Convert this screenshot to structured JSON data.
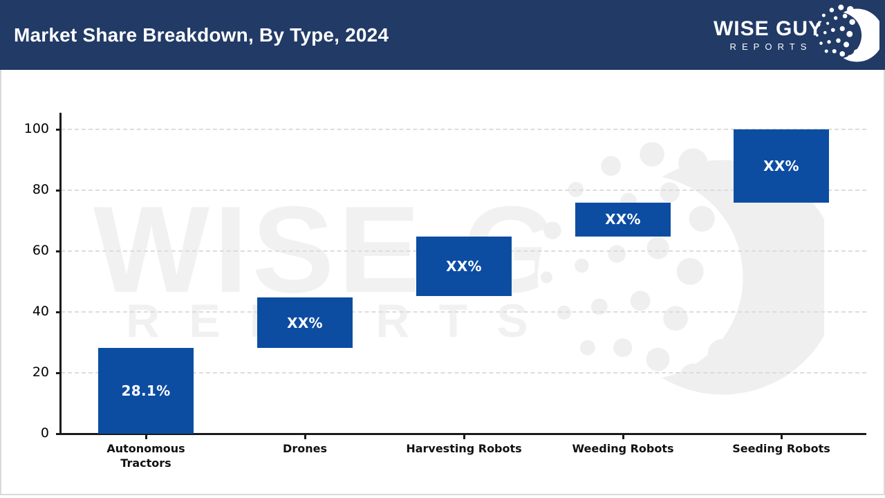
{
  "header": {
    "title": "Market Share Breakdown, By Type, 2024",
    "logo_line1": "WISE GUY",
    "logo_line2": "REPORTS",
    "bg_color": "#213A66"
  },
  "watermark": {
    "line1": "WISE GUY",
    "line2": "REPORTS"
  },
  "chart_data": {
    "type": "bar",
    "variant": "floating-waterfall",
    "title": "Market Share Breakdown, By Type, 2024",
    "categories": [
      "Autonomous Tractors",
      "Drones",
      "Harvesting Robots",
      "Weeding Robots",
      "Seeding Robots"
    ],
    "series": [
      {
        "name": "Market Share (%)",
        "segments": [
          {
            "start": 0,
            "end": 28.1
          },
          {
            "start": 28.1,
            "end": 44.8
          },
          {
            "start": 45.2,
            "end": 64.8
          },
          {
            "start": 64.8,
            "end": 75.9
          },
          {
            "start": 75.9,
            "end": 100
          }
        ]
      }
    ],
    "bar_value_labels": [
      "28.1%",
      "XX%",
      "XX%",
      "XX%",
      "XX%"
    ],
    "xlabel": "",
    "ylabel": "",
    "yticks": [
      0,
      20,
      40,
      60,
      80,
      100
    ],
    "ylim": [
      0,
      105.5
    ],
    "grid": "horizontal-dashed",
    "legend": "none",
    "bar_color": "#0C4DA2",
    "grid_color": "#DCDCDC",
    "axis_color": "#1A1A1A"
  }
}
